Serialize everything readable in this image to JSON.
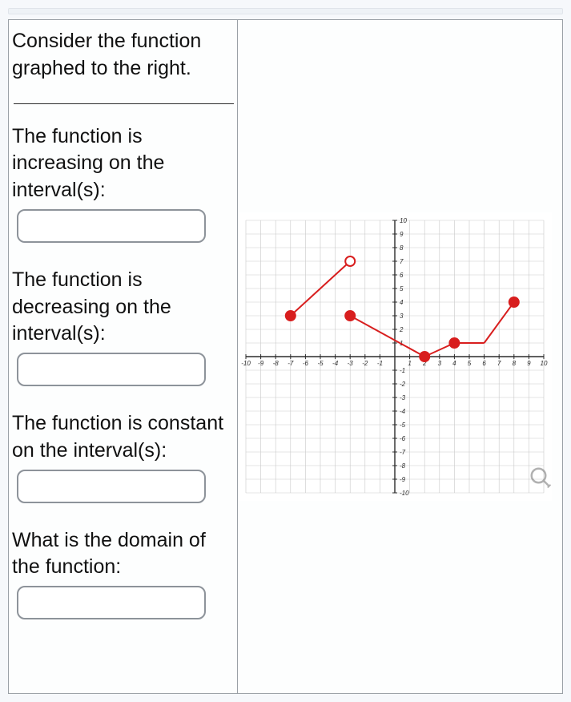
{
  "prompt": "Consider the function graphed to the right.",
  "questions": {
    "increasing": {
      "label": "The function is increasing on the interval(s):",
      "value": ""
    },
    "decreasing": {
      "label": "The function is decreasing on the interval(s):",
      "value": ""
    },
    "constant": {
      "label": "The function is constant on the interval(s):",
      "value": ""
    },
    "domain": {
      "label": "What is the domain of the function:",
      "value": ""
    }
  },
  "chart": {
    "type": "line",
    "xlim": [
      -10,
      10
    ],
    "ylim": [
      -10,
      10
    ],
    "tick_step": 1,
    "grid_color": "#c9c9c9",
    "axis_color": "#2b2b2b",
    "line_color": "#d81e1e",
    "background_color": "#ffffff",
    "line_width": 2,
    "marker_radius": 7,
    "open_marker_radius": 6,
    "label_fontsize": 8,
    "segments": [
      {
        "from": [
          -7,
          3
        ],
        "to": [
          -3,
          7
        ],
        "start": "closed",
        "end": "open"
      },
      {
        "from": [
          -3,
          3
        ],
        "to": [
          2,
          0
        ],
        "start": "closed",
        "end": "closed"
      },
      {
        "from": [
          2,
          0
        ],
        "to": [
          4,
          1
        ],
        "start": "closed",
        "end": "closed"
      },
      {
        "from": [
          4,
          1
        ],
        "to": [
          6,
          1
        ],
        "start": "closed",
        "end": "none"
      },
      {
        "from": [
          6,
          1
        ],
        "to": [
          8,
          4
        ],
        "start": "none",
        "end": "closed"
      }
    ],
    "x_labels": [
      -10,
      -9,
      -8,
      -7,
      -6,
      -5,
      -4,
      -3,
      -2,
      -1,
      1,
      2,
      3,
      4,
      5,
      6,
      7,
      8,
      9,
      10
    ],
    "y_labels": [
      -10,
      -9,
      -8,
      -7,
      -6,
      -5,
      -4,
      -3,
      -2,
      -1,
      1,
      2,
      3,
      4,
      5,
      6,
      7,
      8,
      9,
      10
    ]
  }
}
